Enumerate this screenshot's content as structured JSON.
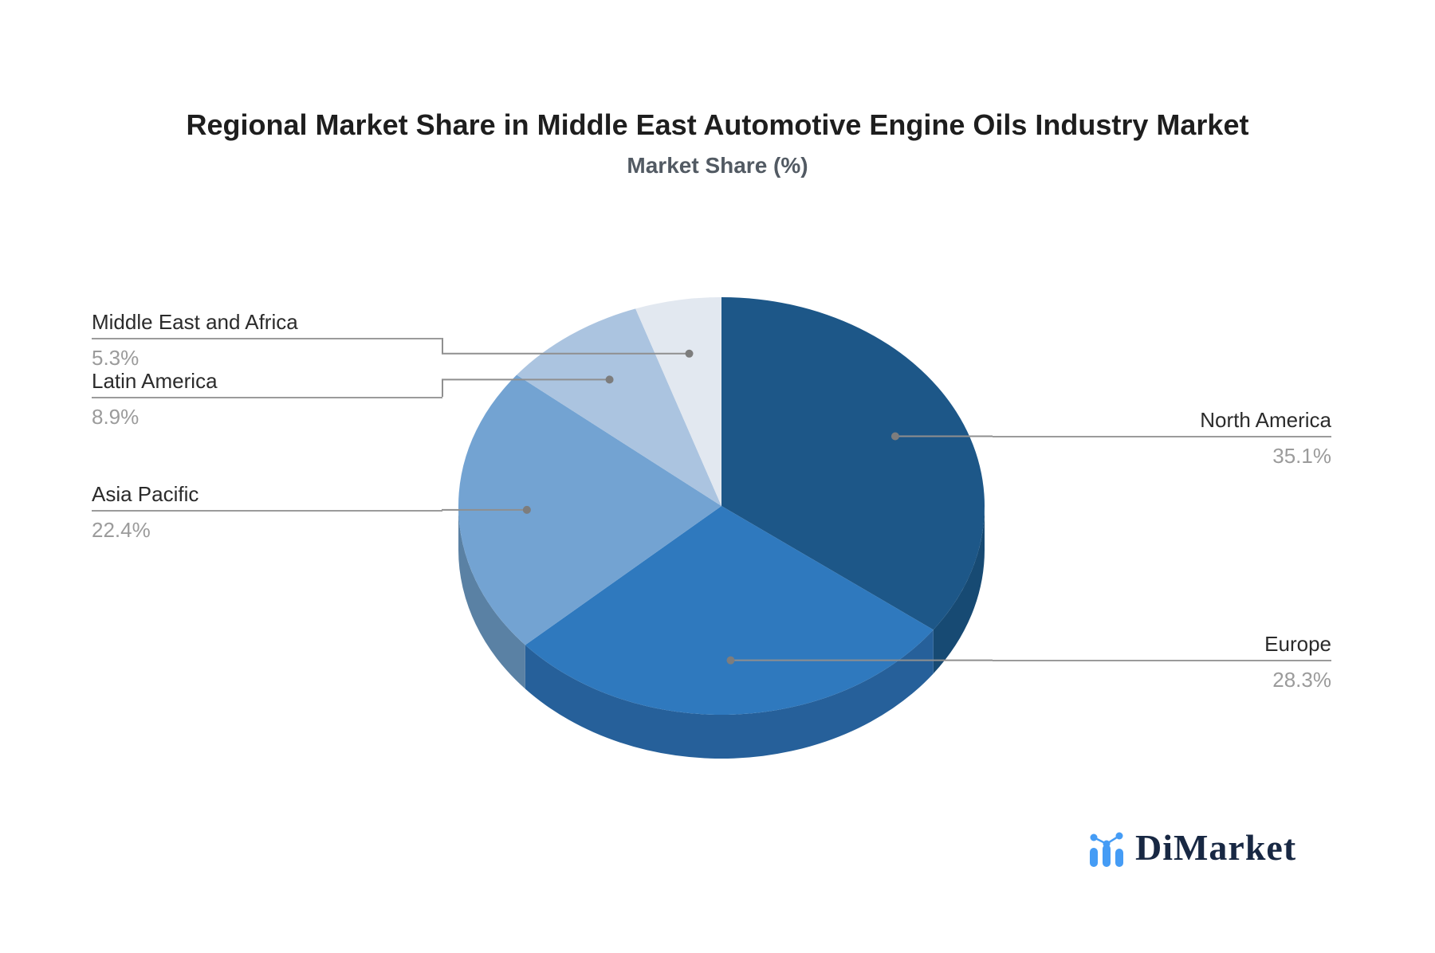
{
  "chart_data": {
    "type": "pie",
    "title": "Regional Market Share in Middle East Automotive Engine Oils Industry Market",
    "subtitle": "Market Share (%)",
    "unit": "%",
    "categories": [
      "North America",
      "Europe",
      "Asia Pacific",
      "Latin America",
      "Middle East and Africa"
    ],
    "values": [
      35.1,
      28.3,
      22.4,
      8.9,
      5.3
    ],
    "colors": [
      "#1d5788",
      "#2f79be",
      "#73a3d2",
      "#abc4e0",
      "#e2e8f0"
    ],
    "side_colors": [
      "#174a73",
      "#26609a",
      "#5a81a4",
      "#8aa5c2",
      "#c2cdda"
    ],
    "start_angle": "top",
    "clockwise": true,
    "three_d": true,
    "legend": "none",
    "label_style": "callout-leader-lines",
    "line_color": "#8f8f8f",
    "dot_color": "#7d7d7d",
    "callouts": [
      {
        "name": "North America",
        "value_label": "35.1%",
        "side": "right"
      },
      {
        "name": "Europe",
        "value_label": "28.3%",
        "side": "right"
      },
      {
        "name": "Asia Pacific",
        "value_label": "22.4%",
        "side": "left"
      },
      {
        "name": "Latin America",
        "value_label": "8.9%",
        "side": "left"
      },
      {
        "name": "Middle East and Africa",
        "value_label": "5.3%",
        "side": "left"
      }
    ]
  },
  "logo": {
    "text": "DiMarket",
    "icon": "bar-line-chart-icon",
    "icon_color": "#459cf5",
    "text_color": "#182843"
  }
}
